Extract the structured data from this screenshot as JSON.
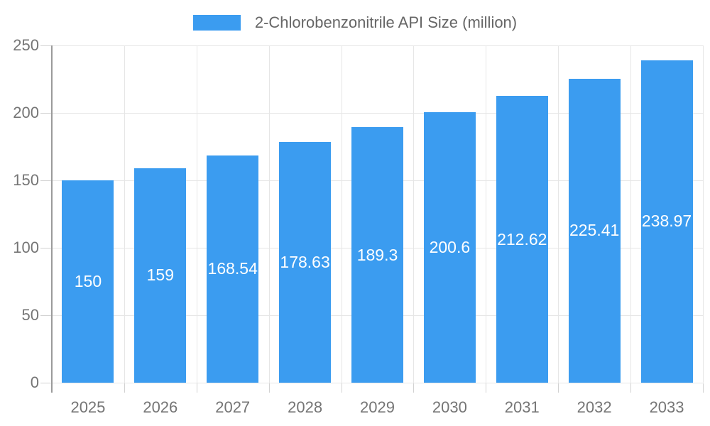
{
  "legend": {
    "series_label": "2-Chlorobenzonitrile API Size (million)"
  },
  "chart_data": {
    "type": "bar",
    "title": "",
    "series_name": "2-Chlorobenzonitrile API Size (million)",
    "categories": [
      "2025",
      "2026",
      "2027",
      "2028",
      "2029",
      "2030",
      "2031",
      "2032",
      "2033"
    ],
    "values": [
      150,
      159,
      168.54,
      178.63,
      189.3,
      200.6,
      212.62,
      225.41,
      238.97
    ],
    "value_labels": [
      "150",
      "159",
      "168.54",
      "178.63",
      "189.3",
      "200.6",
      "212.62",
      "225.41",
      "238.97"
    ],
    "xlabel": "",
    "ylabel": "",
    "ylim": [
      0,
      250
    ],
    "yticks": [
      0,
      50,
      100,
      150,
      200,
      250
    ],
    "grid": true,
    "legend_position": "top-center",
    "bar_color": "#3b9cf0",
    "value_label_color": "#ffffff"
  },
  "colors": {
    "background": "#ffffff",
    "bar": "#3b9cf0",
    "grid_line": "#e6e6e6",
    "axis_line": "#9b9b9b",
    "tick": "#d2d2d2",
    "axis_label": "#757575",
    "legend_text": "#666666"
  }
}
